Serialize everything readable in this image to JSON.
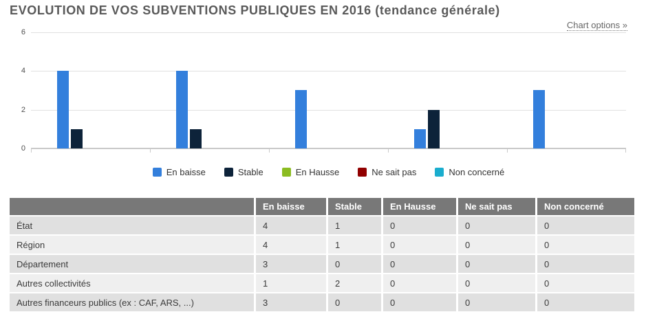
{
  "title": "EVOLUTION DE VOS SUBVENTIONS PUBLIQUES EN 2016 (tendance générale)",
  "chart_options_label": "Chart options »",
  "colors": {
    "en_baisse": "#337fdc",
    "stable": "#0d233a",
    "en_hausse": "#8bbc21",
    "ne_sait_pas": "#910000",
    "non_concerne": "#1aadce",
    "grid": "#e0e0e0",
    "axis": "#c9c9c9",
    "table_header_bg": "#787878",
    "row_dark_bg": "#e0e0e0",
    "row_light_bg": "#efefef"
  },
  "chart_data": {
    "type": "bar",
    "title": "EVOLUTION DE VOS SUBVENTIONS PUBLIQUES EN 2016 (tendance générale)",
    "categories": [
      "État",
      "Région",
      "Département",
      "Autres collectivités",
      "Autres financeurs publics (ex : CAF, ARS, ...)"
    ],
    "series": [
      {
        "name": "En baisse",
        "color": "#337fdc",
        "values": [
          4,
          4,
          3,
          1,
          3
        ]
      },
      {
        "name": "Stable",
        "color": "#0d233a",
        "values": [
          1,
          1,
          0,
          2,
          0
        ]
      },
      {
        "name": "En Hausse",
        "color": "#8bbc21",
        "values": [
          0,
          0,
          0,
          0,
          0
        ]
      },
      {
        "name": "Ne sait pas",
        "color": "#910000",
        "values": [
          0,
          0,
          0,
          0,
          0
        ]
      },
      {
        "name": "Non concerné",
        "color": "#1aadce",
        "values": [
          0,
          0,
          0,
          0,
          0
        ]
      }
    ],
    "xlabel": "",
    "ylabel": "",
    "ylim": [
      0,
      6
    ],
    "yticks": [
      0,
      2,
      4,
      6
    ],
    "grid": true,
    "x_axis_category_labels_visible": false,
    "legend_position": "bottom-center"
  },
  "table": {
    "header": [
      "",
      "En baisse",
      "Stable",
      "En Hausse",
      "Ne sait pas",
      "Non concerné"
    ],
    "rows": [
      {
        "label": "État",
        "values": [
          4,
          1,
          0,
          0,
          0
        ]
      },
      {
        "label": "Région",
        "values": [
          4,
          1,
          0,
          0,
          0
        ]
      },
      {
        "label": "Département",
        "values": [
          3,
          0,
          0,
          0,
          0
        ]
      },
      {
        "label": "Autres collectivités",
        "values": [
          1,
          2,
          0,
          0,
          0
        ]
      },
      {
        "label": "Autres financeurs publics (ex : CAF, ARS, ...)",
        "values": [
          3,
          0,
          0,
          0,
          0
        ]
      }
    ]
  }
}
